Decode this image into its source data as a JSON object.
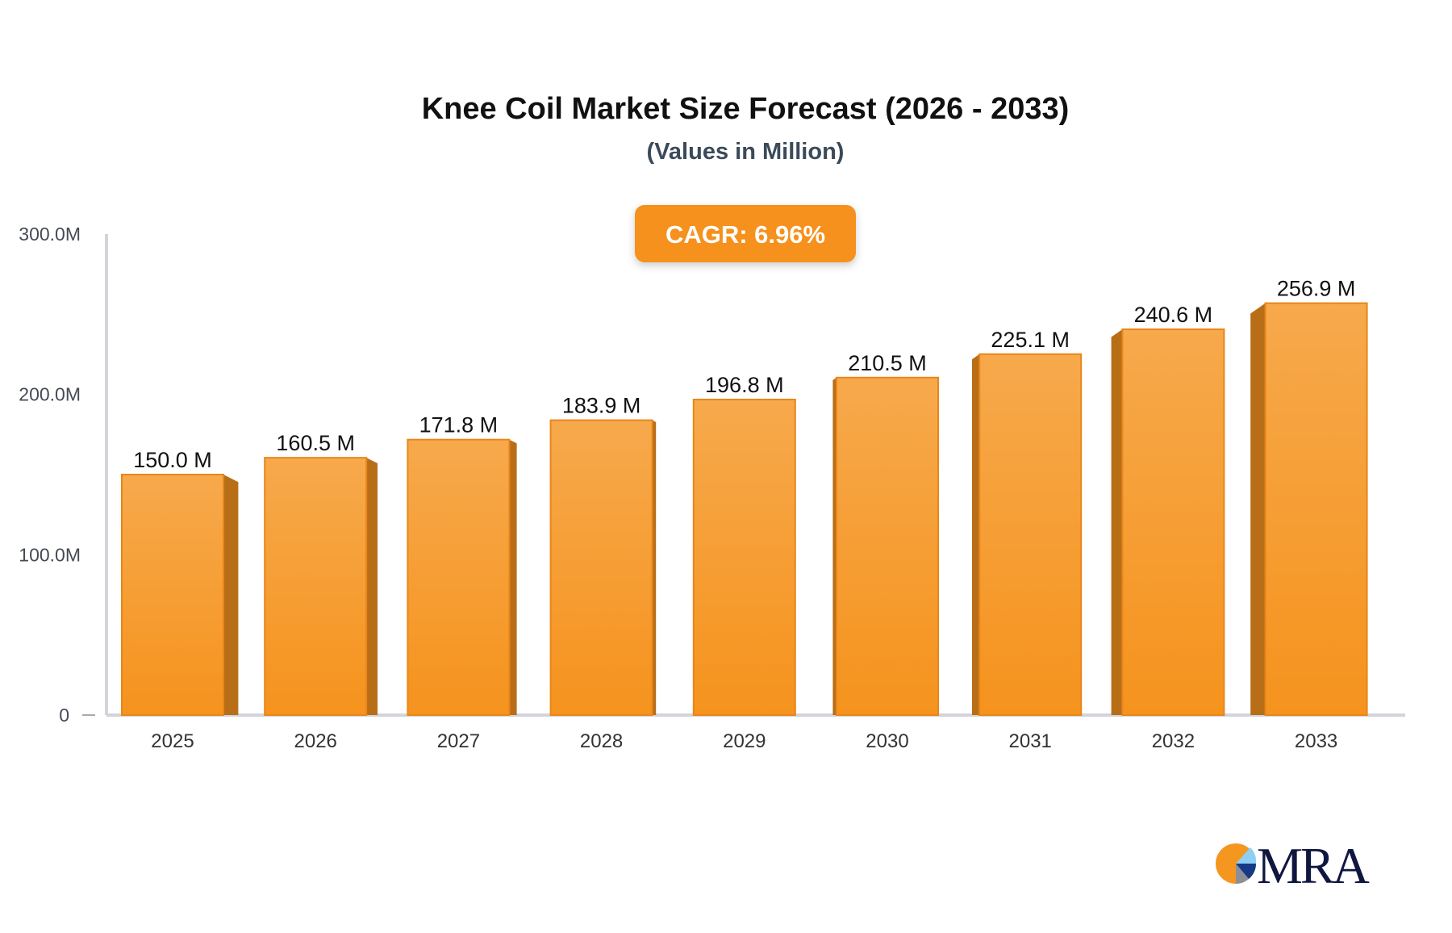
{
  "chart_data": {
    "type": "bar",
    "title": "Knee Coil Market Size Forecast (2026 - 2033)",
    "subtitle": "(Values in Million)",
    "badge": "CAGR: 6.96%",
    "categories": [
      "2025",
      "2026",
      "2027",
      "2028",
      "2029",
      "2030",
      "2031",
      "2032",
      "2033"
    ],
    "values": [
      150.0,
      160.5,
      171.8,
      183.9,
      196.8,
      210.5,
      225.1,
      240.6,
      256.9
    ],
    "data_labels": [
      "150.0 M",
      "160.5 M",
      "171.8 M",
      "183.9 M",
      "196.8 M",
      "210.5 M",
      "225.1 M",
      "240.6 M",
      "256.9 M"
    ],
    "ylim": [
      0,
      300
    ],
    "yticks": [
      0,
      100,
      200,
      300
    ],
    "ytick_labels": [
      "0",
      "100.0M",
      "200.0M",
      "300.0M"
    ],
    "grid": false,
    "colors": {
      "bar": "#f5961f",
      "bar_top": "#f7a94c",
      "bar_side": "#b86e17",
      "badge": "#f5911e",
      "axis": "#d2d4da"
    }
  },
  "logo": {
    "text": "MRA"
  }
}
